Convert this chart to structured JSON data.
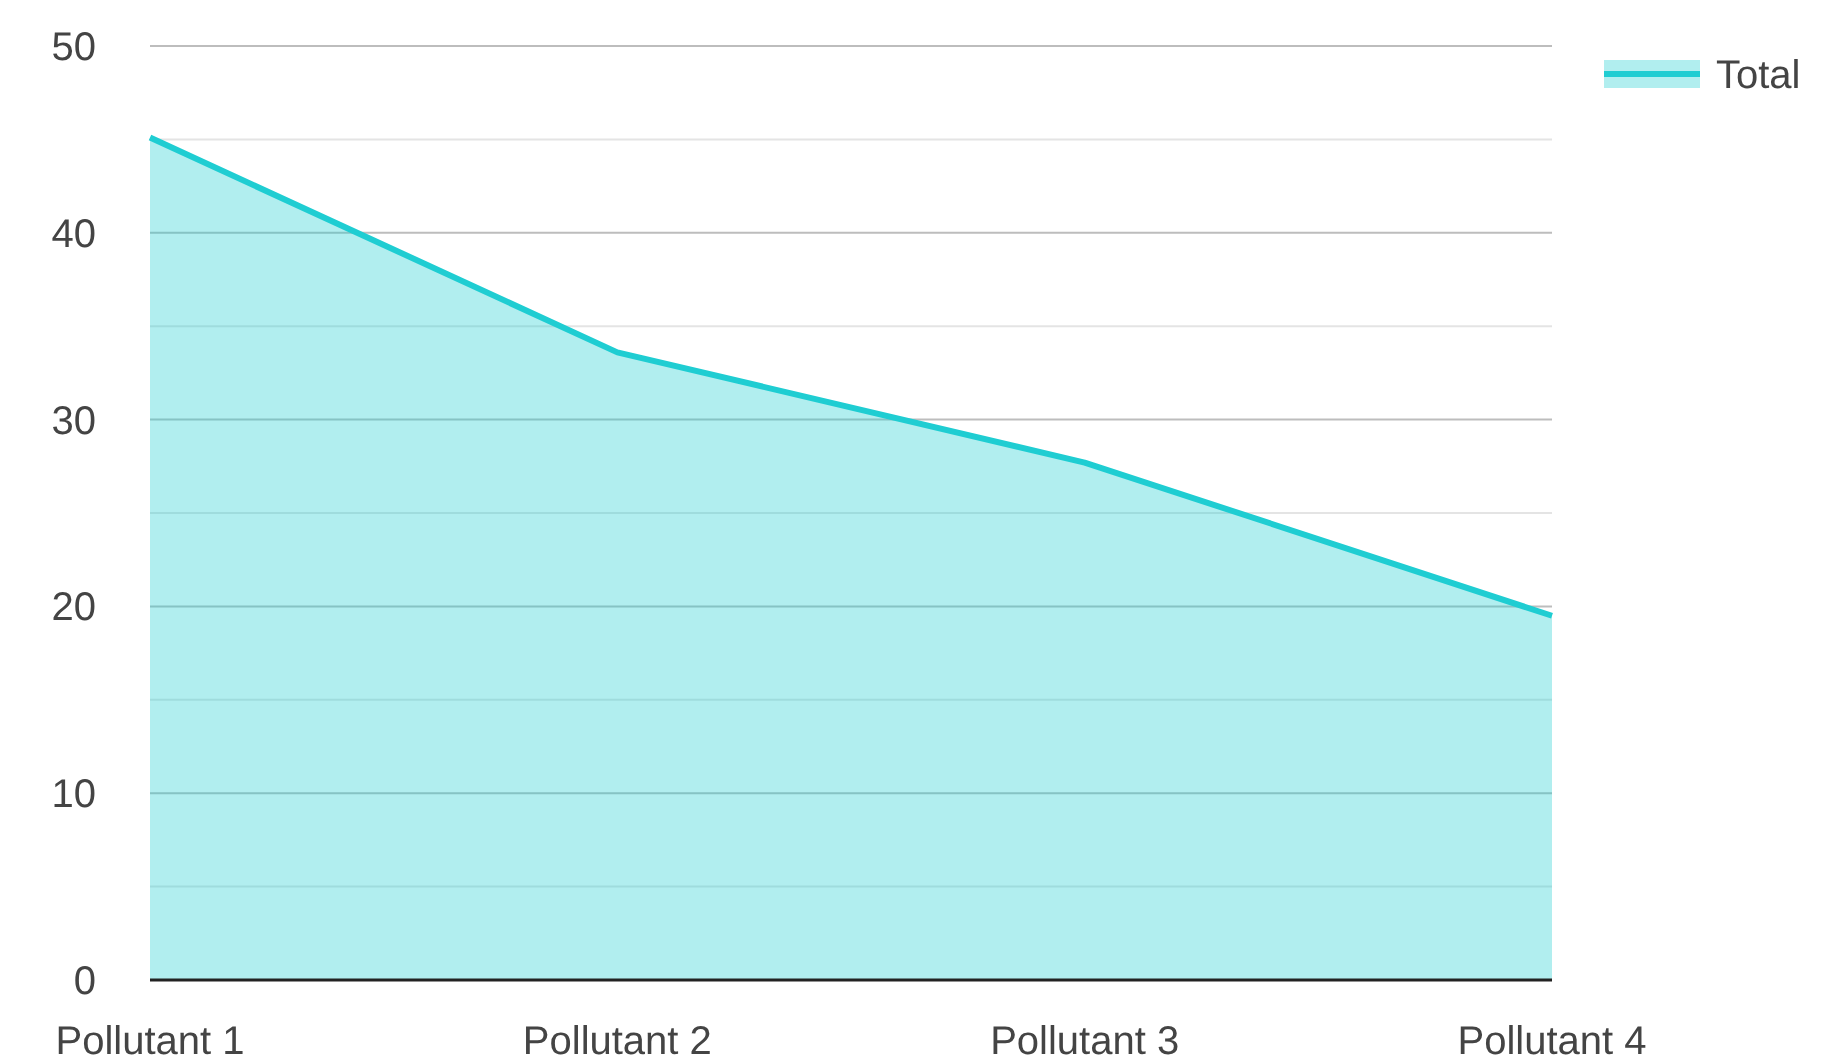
{
  "chart_data": {
    "type": "area",
    "categories": [
      "Pollutant 1",
      "Pollutant 2",
      "Pollutant 3",
      "Pollutant 4"
    ],
    "series": [
      {
        "name": "Total",
        "color": "#1fcdd2",
        "values": [
          45.1,
          33.6,
          27.7,
          19.5
        ]
      }
    ],
    "ylim": [
      0,
      50
    ],
    "yticks": [
      0,
      {
        "value": 5,
        "label": null
      },
      10,
      {
        "value": 15,
        "label": null
      },
      20,
      {
        "value": 25,
        "label": null
      },
      30,
      {
        "value": 35,
        "label": null
      },
      40,
      {
        "value": 45,
        "label": null
      },
      50
    ],
    "grid": "y",
    "legend": "top right"
  }
}
